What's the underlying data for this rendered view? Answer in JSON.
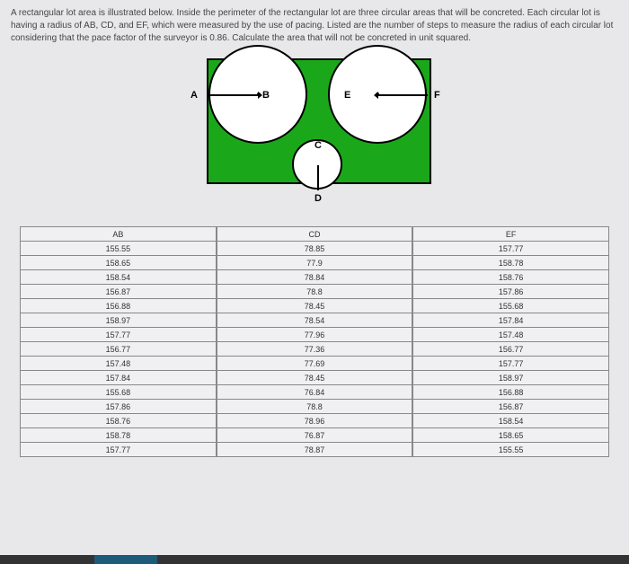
{
  "problem": {
    "line1": "A rectangular lot area is illustrated below. Inside the perimeter of the rectangular lot are three circular areas that will be concreted. Each circular lot is",
    "line2": "having a radius of AB, CD, and EF, which were measured by the use of pacing. Listed are the number of steps to measure the radius of each circular lot",
    "line3": "considering that the pace factor of the surveyor is 0.86. Calculate the area that will not be concreted in unit squared."
  },
  "labels": {
    "a": "A",
    "b": "B",
    "c": "C",
    "d": "D",
    "e": "E",
    "f": "F"
  },
  "table_ab": {
    "header": "AB",
    "values": [
      "155.55",
      "158.65",
      "158.54",
      "156.87",
      "156.88",
      "158.97",
      "157.77",
      "156.77",
      "157.48",
      "157.84",
      "155.68",
      "157.86",
      "158.76",
      "158.78",
      "157.77"
    ]
  },
  "table_cd": {
    "header": "CD",
    "values": [
      "78.85",
      "77.9",
      "78.84",
      "78.8",
      "78.45",
      "78.54",
      "77.96",
      "77.36",
      "77.69",
      "78.45",
      "76.84",
      "78.8",
      "78.96",
      "76.87",
      "78.87"
    ]
  },
  "table_ef": {
    "header": "EF",
    "values": [
      "157.77",
      "158.78",
      "158.76",
      "157.86",
      "155.68",
      "157.84",
      "157.48",
      "156.77",
      "157.77",
      "158.97",
      "156.88",
      "156.87",
      "158.54",
      "158.65",
      "155.55"
    ]
  },
  "colors": {
    "green": "#1aa81a",
    "bg": "#e8e8ea"
  }
}
